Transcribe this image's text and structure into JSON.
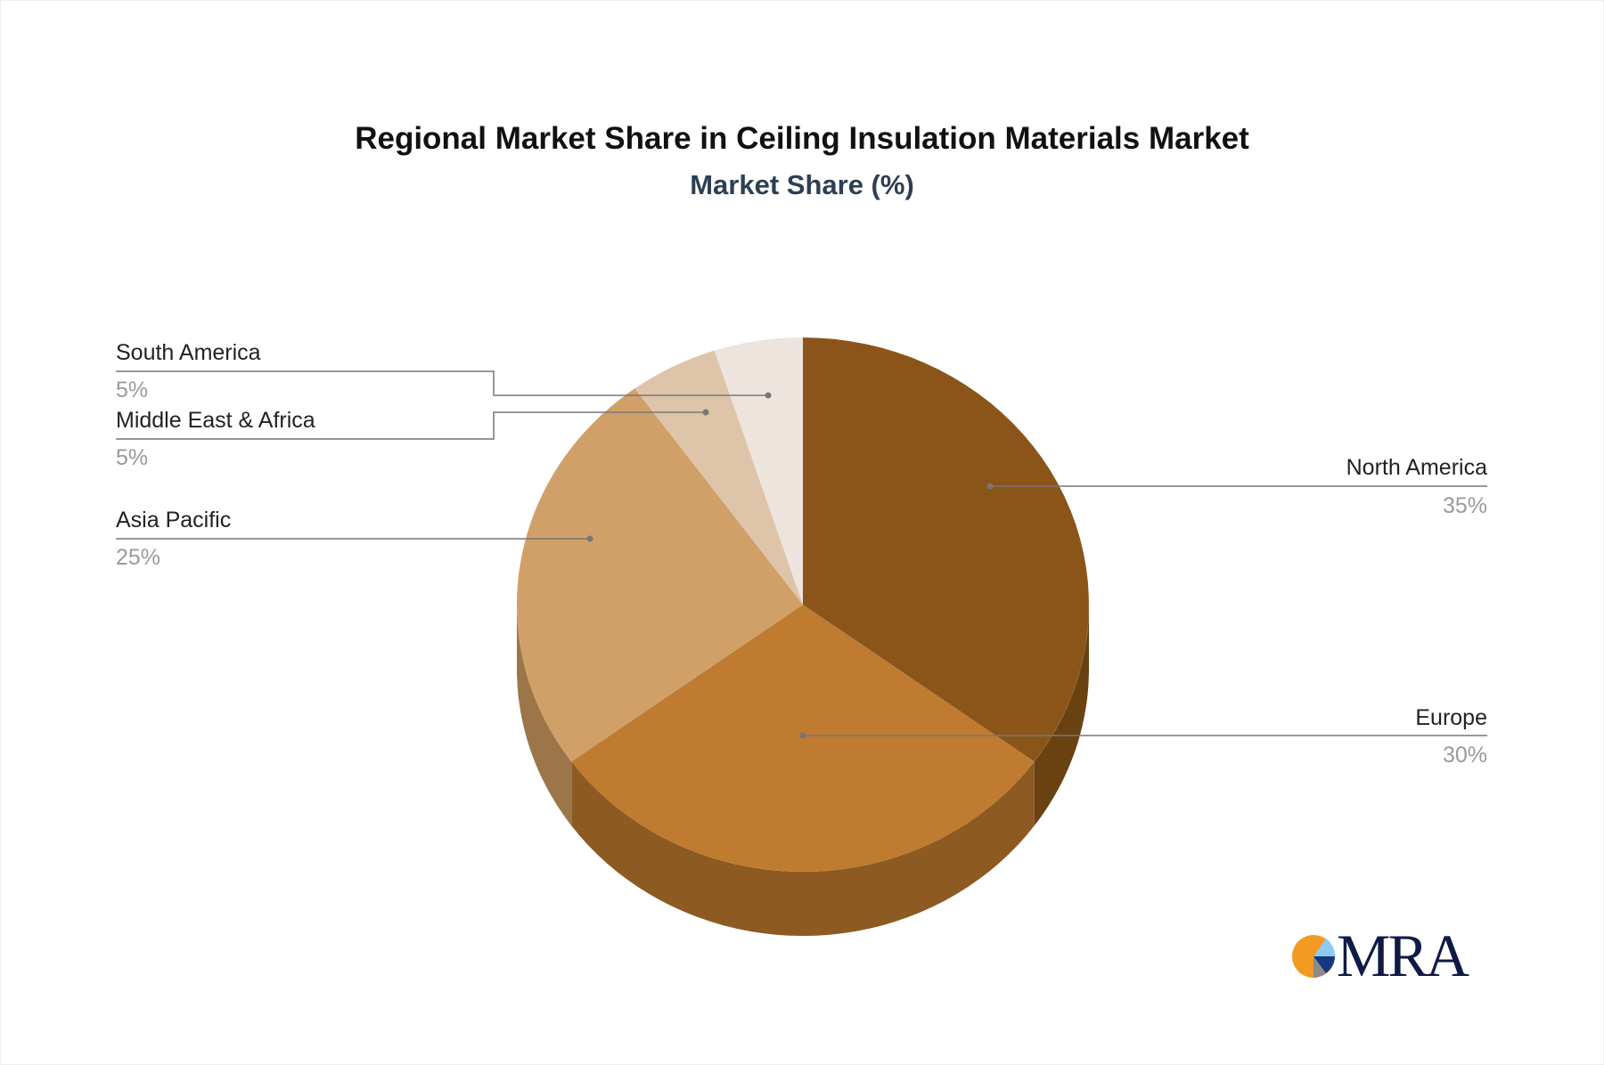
{
  "chart_data": {
    "type": "pie",
    "title": "Regional Market Share in Ceiling Insulation Materials Market",
    "subtitle": "Market Share (%)",
    "style": "3d",
    "slices": [
      {
        "label": "North America",
        "value": 35,
        "value_label": "35%",
        "color": "#8b5519",
        "side_color": "#6a4212"
      },
      {
        "label": "Europe",
        "value": 30,
        "value_label": "30%",
        "color": "#bf7b30",
        "side_color": "#8d5a22"
      },
      {
        "label": "Asia Pacific",
        "value": 25,
        "value_label": "25%",
        "color": "#d1a068",
        "side_color": "#9c7649"
      },
      {
        "label": "Middle East & Africa",
        "value": 5,
        "value_label": "5%",
        "color": "#dec4a8",
        "side_color": "#b09a82"
      },
      {
        "label": "South America",
        "value": 5,
        "value_label": "5%",
        "color": "#ede4de",
        "side_color": "#c0b5ae"
      }
    ]
  },
  "logo": {
    "text": "MRA",
    "colors": [
      "#f39a22",
      "#8ecbf0",
      "#14387f",
      "#8a8a8a"
    ]
  }
}
